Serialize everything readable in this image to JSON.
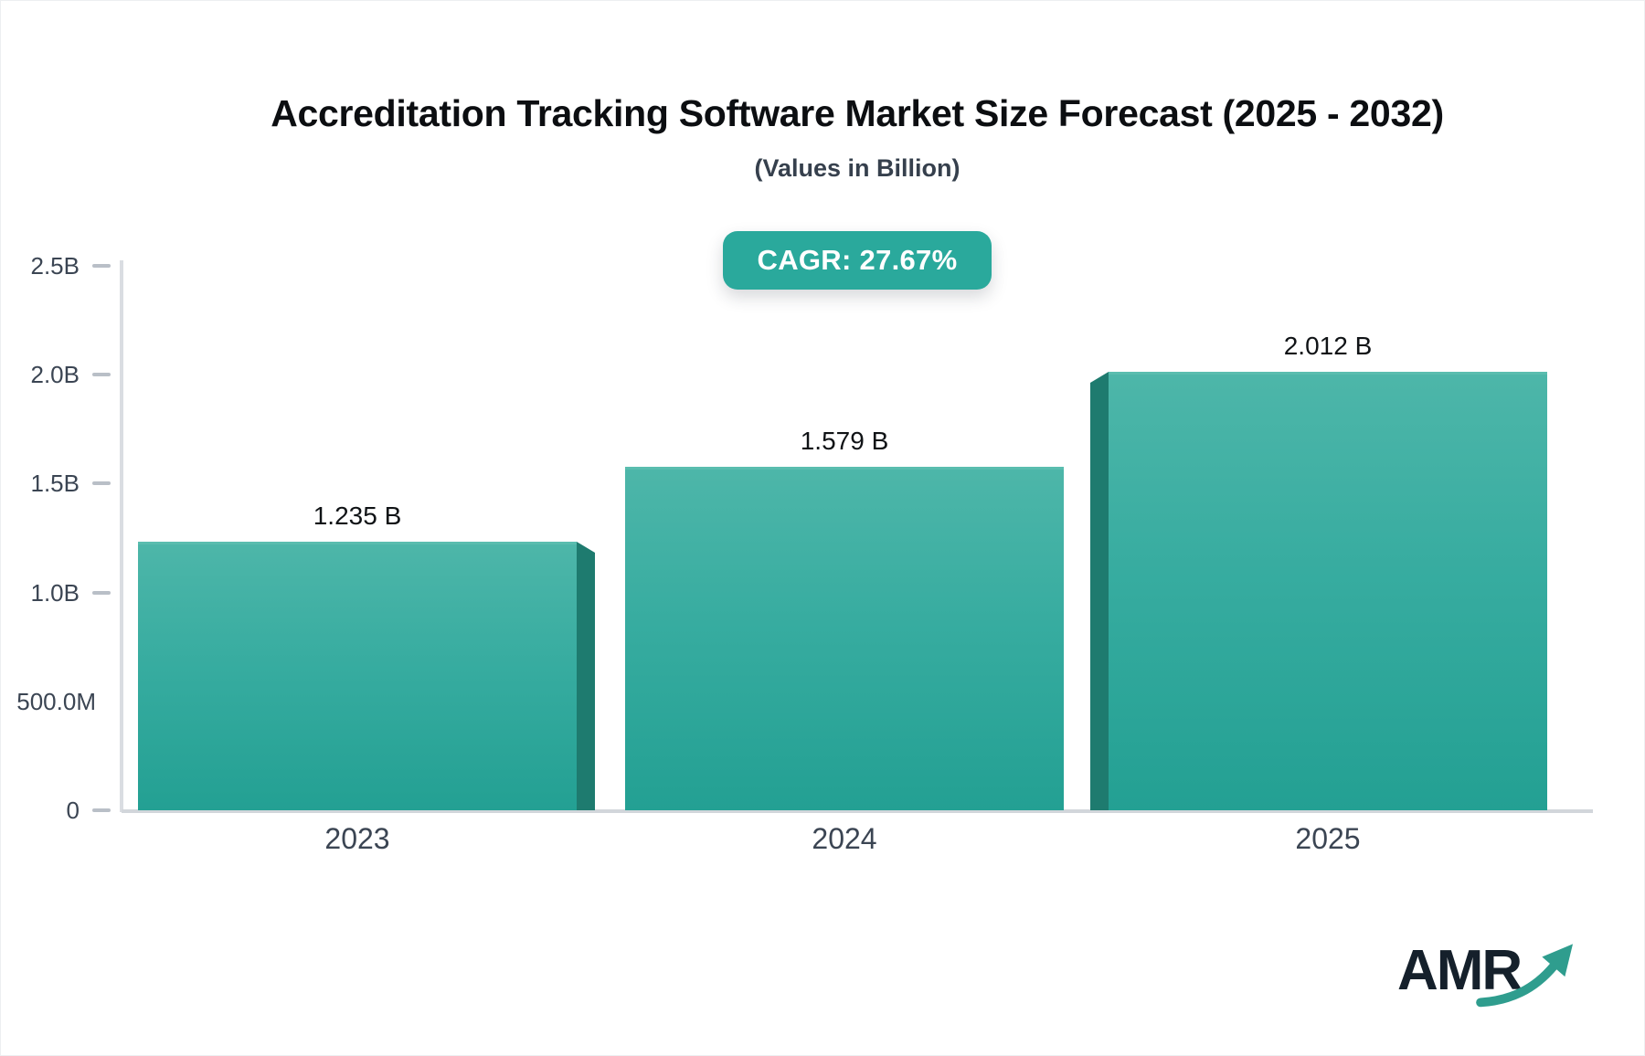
{
  "header": {
    "title": "Accreditation Tracking Software Market Size Forecast (2025 - 2032)",
    "subtitle": "(Values in Billion)",
    "cagr_badge": "CAGR: 27.67%"
  },
  "chart_data": {
    "type": "bar",
    "title": "Accreditation Tracking Software Market Size Forecast (2025 - 2032)",
    "subtitle": "(Values in Billion)",
    "categories": [
      "2023",
      "2024",
      "2025"
    ],
    "values": [
      1.235,
      1.579,
      2.012
    ],
    "value_labels": [
      "1.235 B",
      "1.579 B",
      "2.012 B"
    ],
    "annotation": "CAGR: 27.67%",
    "ylim": [
      0,
      2.5
    ],
    "yticks": [
      {
        "label": "2.5B",
        "value": 2.5,
        "tick": true
      },
      {
        "label": "2.0B",
        "value": 2.0,
        "tick": true
      },
      {
        "label": "1.5B",
        "value": 1.5,
        "tick": true
      },
      {
        "label": "1.0B",
        "value": 1.0,
        "tick": true
      },
      {
        "label": "500.0M",
        "value": 0.5,
        "tick": false
      },
      {
        "label": "0",
        "value": 0,
        "tick": true
      }
    ],
    "grid": false,
    "legend": "none",
    "bar_style": "3d-teal-gradient"
  },
  "branding": {
    "logo_text": "AMR",
    "logo_icon": "growth-arrow"
  },
  "colors": {
    "bar_top": "#4db6a9",
    "bar_bottom": "#23a093",
    "bar_side": "#1e7b6f",
    "bar_top_edge": "#5abdaf",
    "badge_bg": "#2aa99c",
    "badge_text": "#ffffff",
    "axis_line": "#d2d6db",
    "tick_dash": "#b9bfc7",
    "tick_text": "#3b4553",
    "title_text": "#0c0e11",
    "subtitle_text": "#36404d",
    "value_text": "#101316",
    "logo_text": "#15202b",
    "logo_arrow": "#2f9d8e"
  }
}
